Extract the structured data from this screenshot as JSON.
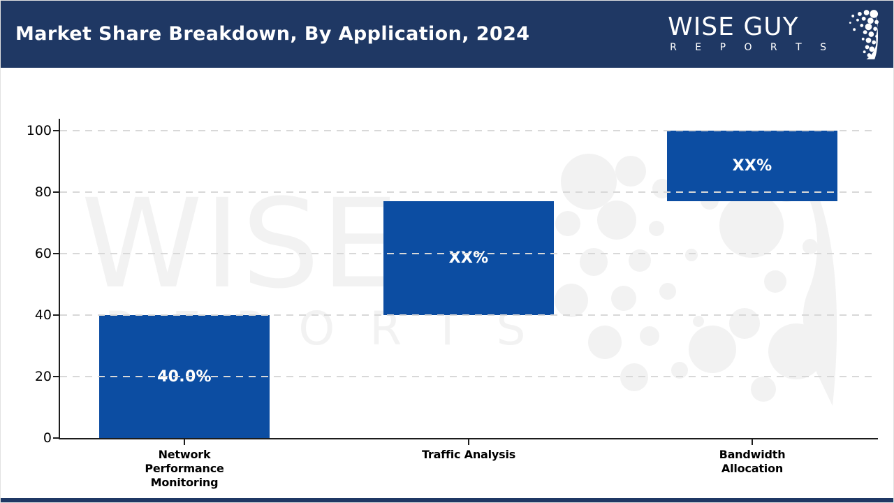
{
  "header": {
    "title": "Market Share Breakdown, By Application, 2024",
    "logo": {
      "brand_line1": "WISE GUY",
      "brand_line2": "R E P O R T S"
    }
  },
  "watermark": {
    "word1": "WISE",
    "word2": "REPORTS"
  },
  "colors": {
    "header_bg": "#1f3864",
    "bar": "#0c4da2",
    "grid": "#d8d8d8",
    "axis": "#1c1c1c",
    "watermark": "#f2f2f2",
    "value_label": "#ffffff"
  },
  "chart_data": {
    "type": "bar",
    "subtype": "waterfall",
    "title": "Market Share Breakdown, By Application, 2024",
    "categories": [
      "Network Performance Monitoring",
      "Traffic Analysis",
      "Bandwidth Allocation"
    ],
    "category_line_breaks": [
      [
        "Network",
        "Performance",
        "Monitoring"
      ],
      [
        "Traffic Analysis"
      ],
      [
        "Bandwidth",
        "Allocation"
      ]
    ],
    "segments": [
      {
        "category": "Network Performance Monitoring",
        "start": 0,
        "end": 40,
        "label": "40.0%"
      },
      {
        "category": "Traffic Analysis",
        "start": 40,
        "end": 77,
        "label": "XX%"
      },
      {
        "category": "Bandwidth Allocation",
        "start": 77,
        "end": 100,
        "label": "XX%"
      }
    ],
    "xlabel": "",
    "ylabel": "",
    "yticks": [
      0,
      20,
      40,
      60,
      80,
      100
    ],
    "ylim": [
      0,
      105
    ],
    "grid": "horizontal-dashed",
    "legend": "none"
  }
}
